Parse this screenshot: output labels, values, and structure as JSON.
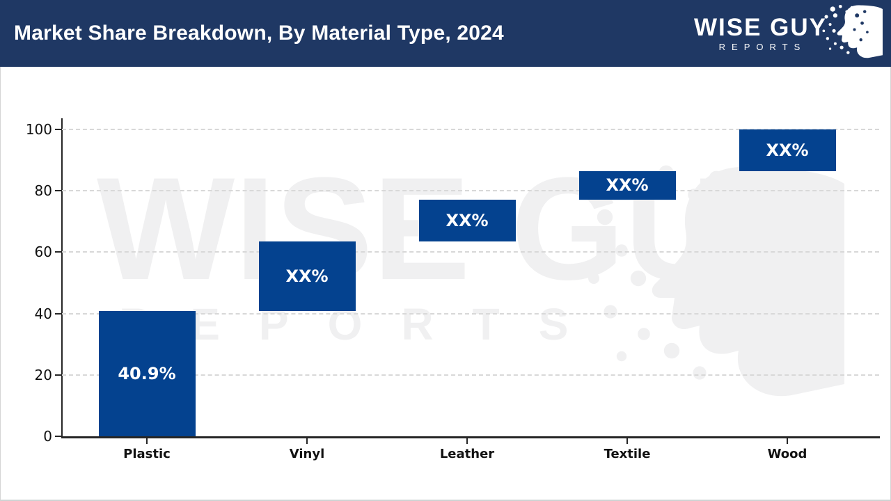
{
  "header": {
    "title": "Market Share Breakdown, By Material Type, 2024",
    "logo": {
      "line1": "WISE GUY",
      "line2": "REPORTS"
    }
  },
  "watermark": {
    "line1": "WISE GUY",
    "line2": "REPORTS"
  },
  "colors": {
    "header_bg": "#1f3864",
    "bar": "#04428f",
    "axis": "#262626",
    "gridline": "#d8d8d8",
    "watermark": "#f0f0f1",
    "bar_label_text": "#ffffff"
  },
  "chart_data": {
    "type": "bar",
    "subtype": "waterfall",
    "title": "Market Share Breakdown, By Material Type, 2024",
    "xlabel": "",
    "ylabel": "",
    "categories": [
      "Plastic",
      "Vinyl",
      "Leather",
      "Textile",
      "Wood"
    ],
    "bars": [
      {
        "category": "Plastic",
        "start": 0,
        "end": 40.9,
        "label": "40.9%"
      },
      {
        "category": "Vinyl",
        "start": 40.9,
        "end": 63.6,
        "label": "XX%"
      },
      {
        "category": "Leather",
        "start": 63.6,
        "end": 77.2,
        "label": "XX%"
      },
      {
        "category": "Textile",
        "start": 77.2,
        "end": 86.4,
        "label": "XX%"
      },
      {
        "category": "Wood",
        "start": 86.4,
        "end": 100,
        "label": "XX%"
      }
    ],
    "yticks": [
      0,
      20,
      40,
      60,
      80,
      100
    ],
    "ylim": [
      0,
      104
    ],
    "grid": "horizontal-dashed",
    "legend": "none"
  }
}
